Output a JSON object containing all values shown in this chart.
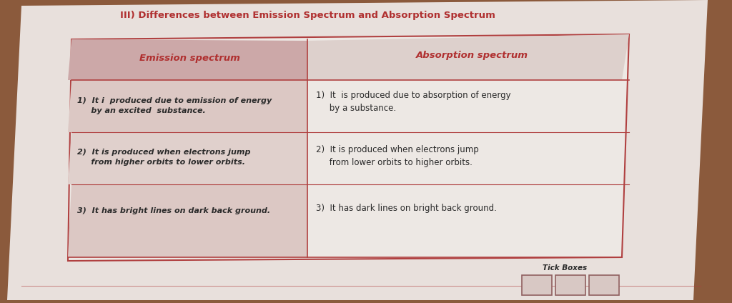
{
  "title": "III) Differences between Emission Spectrum and Absorption Spectrum",
  "title_color": "#b03030",
  "page_color": "#e8e0dc",
  "table_bg": "#ede8e4",
  "col1_bg": "#dcc8c4",
  "col2_bg": "#ede8e4",
  "header1_bg": "#cca8a8",
  "header2_bg": "#ddd0cc",
  "border_color": "#b04040",
  "col1_header": "Emission spectrum",
  "col2_header": "Absorption spectrum",
  "col1_rows": [
    "1)  It i  produced due to emission of energy\n     by an excited  substance.",
    "2)  It is produced when electrons jump\n     from higher orbits to lower orbits.",
    "3)  It has bright lines on dark back ground."
  ],
  "col2_rows": [
    "1)  It  is produced due to absorption of energy\n     by a substance.",
    "2)  It is produced when electrons jump\n     from lower orbits to higher orbits.",
    "3)  It has dark lines on bright back ground."
  ],
  "tick_boxes_label": "Tick Boxes",
  "wood_bg": "#8B5A3C",
  "text_color": "#2a2a2a",
  "col1_text_color": "#2a2a2a",
  "header_text_color": "#b03030",
  "figsize": [
    10.24,
    4.24
  ],
  "dpi": 100
}
